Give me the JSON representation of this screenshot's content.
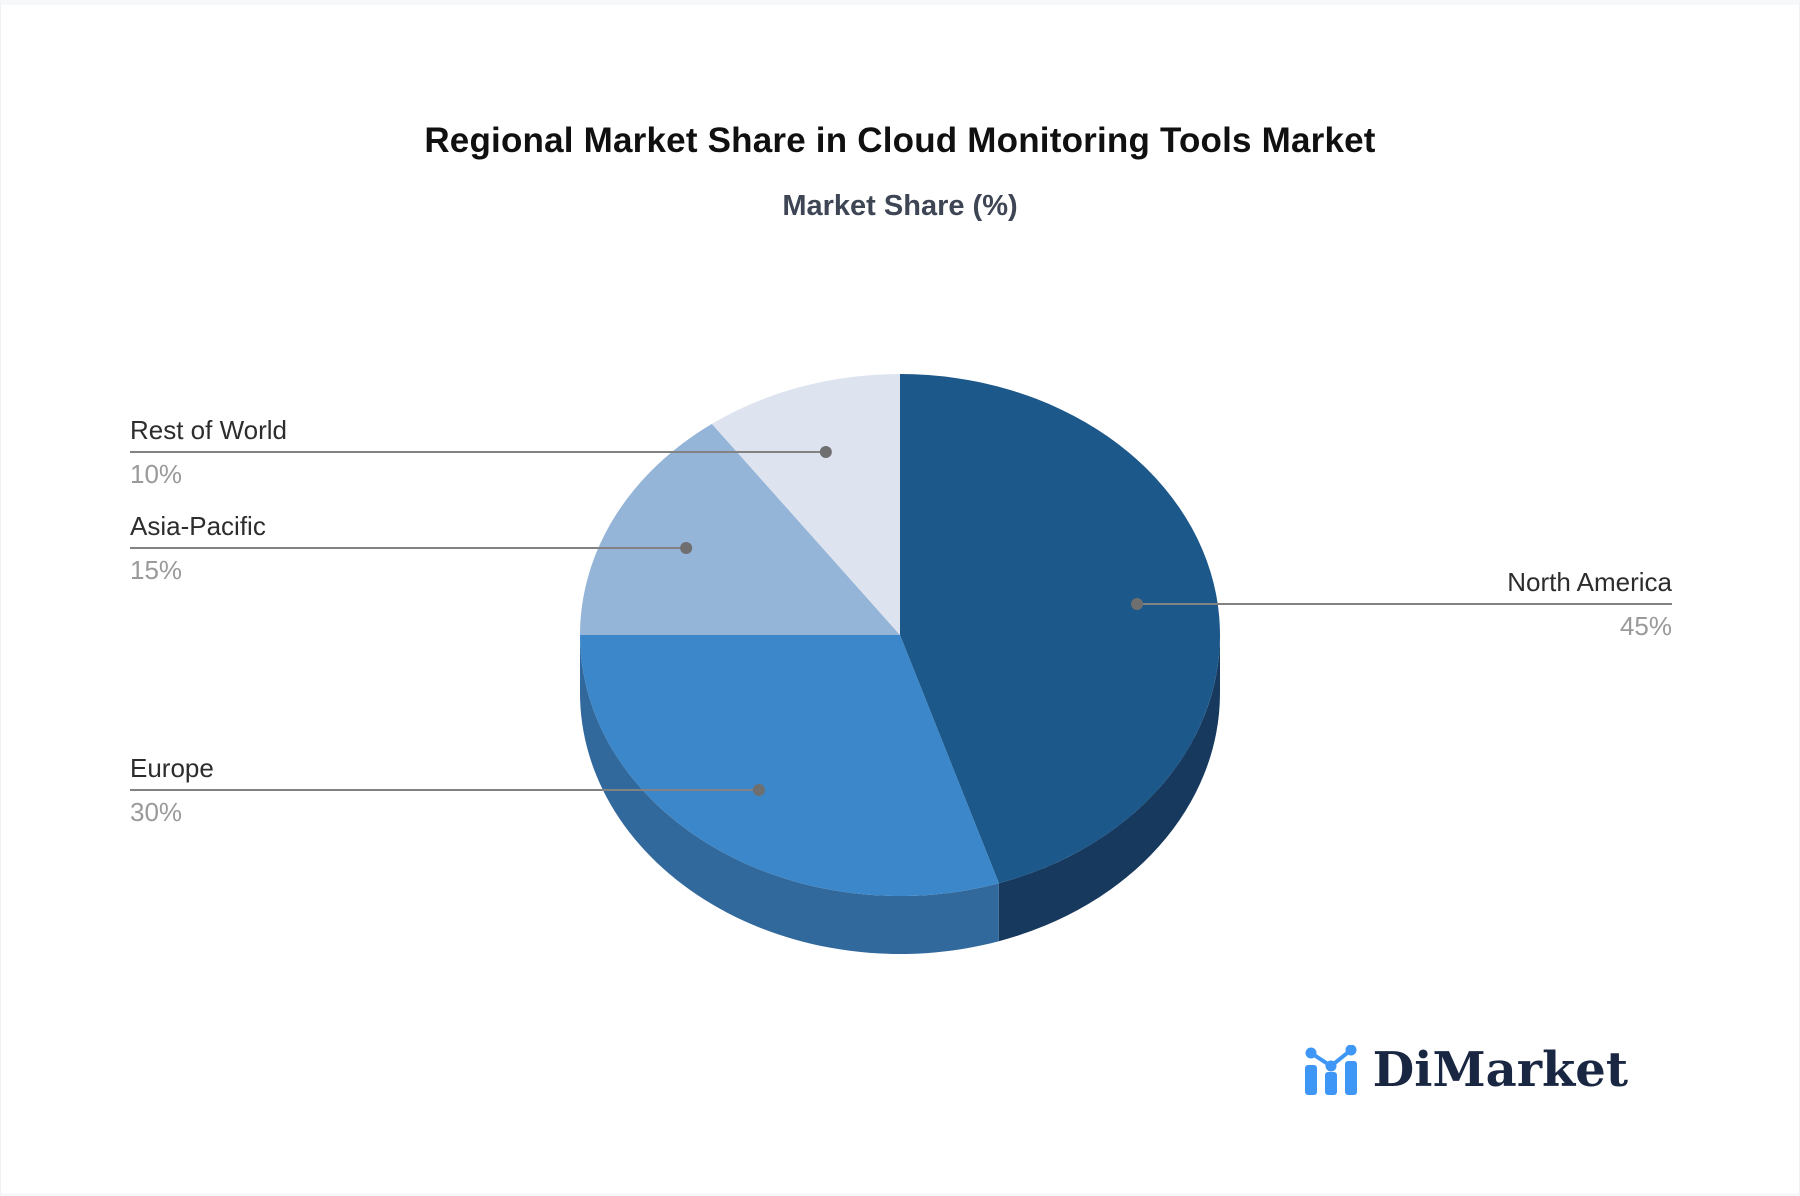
{
  "header": {
    "title": "Regional Market Share in Cloud Monitoring Tools Market",
    "subtitle": "Market Share (%)"
  },
  "chart_data": {
    "type": "pie",
    "style": "3d",
    "title": "Regional Market Share in Cloud Monitoring Tools Market",
    "unit_label": "Market Share (%)",
    "categories": [
      "North America",
      "Europe",
      "Asia-Pacific",
      "Rest of World"
    ],
    "values": [
      45,
      30,
      15,
      10
    ],
    "value_labels": [
      "45%",
      "30%",
      "15%",
      "10%"
    ],
    "colors": [
      "#1c588a",
      "#3c87c9",
      "#94b4d8",
      "#dde4ef"
    ],
    "side_colors": [
      "#17395e",
      "#32699c",
      "#7d9cc0",
      "#c3cedd"
    ],
    "start_angle_deg": 0,
    "direction": "clockwise",
    "legend": "callout-labels",
    "leader_line_color": "#828282",
    "dot_color": "#6f6f6f",
    "label_color": "#2d2d2d",
    "value_label_color": "#9a9a9a"
  },
  "footer": {
    "brand": "DiMarket",
    "brand_icon": "bar-line-chart-icon",
    "brand_text_color": "#1a2742",
    "brand_icon_color": "#3e97f6"
  }
}
